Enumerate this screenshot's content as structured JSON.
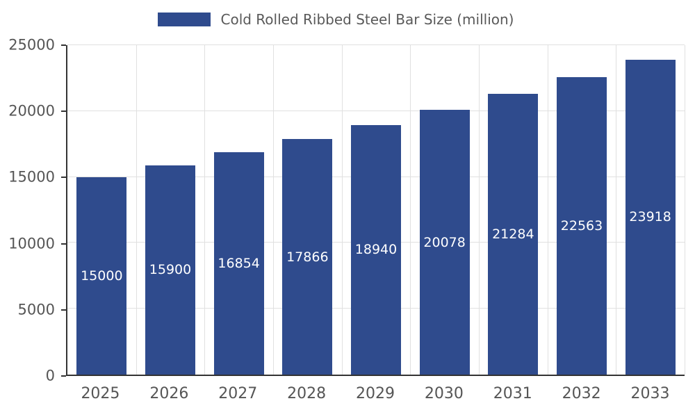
{
  "chart_data": {
    "type": "bar",
    "title": "Cold Rolled Ribbed Steel Bar Size (million)",
    "categories": [
      "2025",
      "2026",
      "2027",
      "2028",
      "2029",
      "2030",
      "2031",
      "2032",
      "2033"
    ],
    "values": [
      15000,
      15900,
      16854,
      17866,
      18940,
      20078,
      21284,
      22563,
      23918
    ],
    "xlabel": "",
    "ylabel": "",
    "ylim": [
      0,
      25000
    ],
    "yticks": [
      0,
      5000,
      10000,
      15000,
      20000,
      25000
    ],
    "grid": true,
    "legend_position": "top-center",
    "value_labels": "inside-center",
    "colors": {
      "bar": "#2f4b8d",
      "grid": "#e0e0e0",
      "axis": "#333333",
      "tick_label": "#555555",
      "title": "#595959",
      "value_label": "#ffffff"
    }
  }
}
